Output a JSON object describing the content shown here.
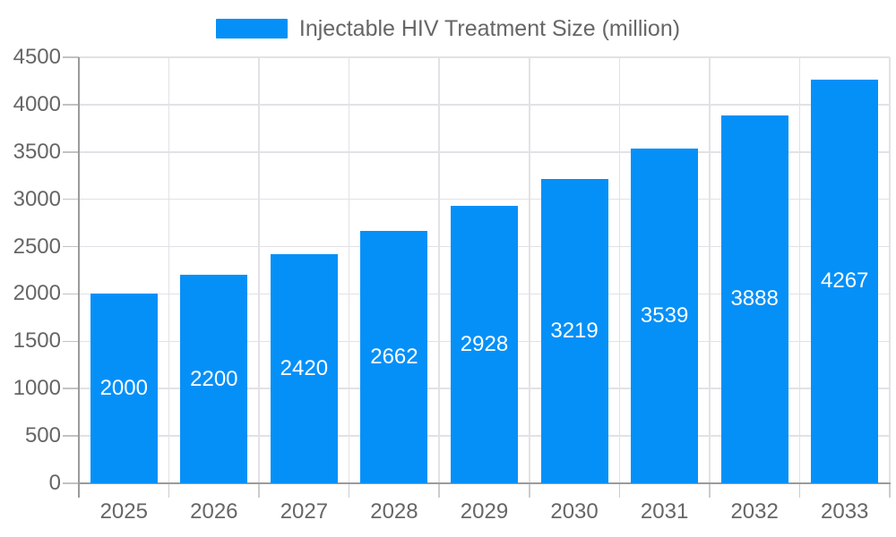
{
  "legend": {
    "label": "Injectable HIV Treatment Size (million)"
  },
  "colors": {
    "bar": "#0590f8",
    "value_label": "#ffffff",
    "axis_line": "#9b9b9b",
    "gridline": "#e2e2e6",
    "tick": "#c2c2c2",
    "axis_text": "#666666",
    "legend_text": "#666666",
    "background": "#ffffff"
  },
  "chart_data": {
    "type": "bar",
    "title": "",
    "xlabel": "",
    "ylabel": "",
    "categories": [
      "2025",
      "2026",
      "2027",
      "2028",
      "2029",
      "2030",
      "2031",
      "2032",
      "2033"
    ],
    "series": [
      {
        "name": "Injectable HIV Treatment Size (million)",
        "values": [
          2000,
          2200,
          2420,
          2662,
          2928,
          3219,
          3539,
          3888,
          4267
        ]
      }
    ],
    "value_labels_shown": true,
    "value_label_position": "inside-center",
    "ylim": [
      0,
      4500
    ],
    "ytick_interval": 500,
    "yticks": [
      0,
      500,
      1000,
      1500,
      2000,
      2500,
      3000,
      3500,
      4000,
      4500
    ],
    "grid": true,
    "grid_vertical": true,
    "legend_position": "top-center"
  }
}
